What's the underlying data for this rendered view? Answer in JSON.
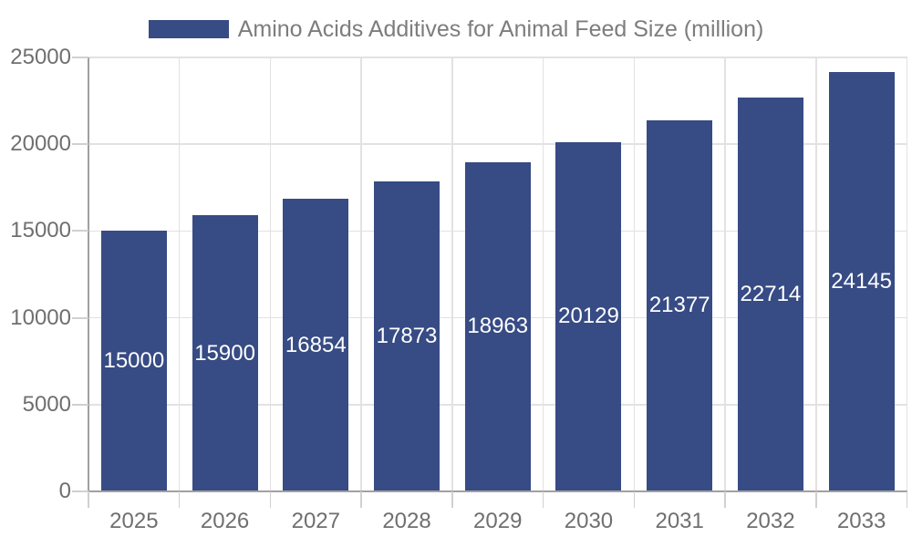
{
  "legend": {
    "label": "Amino Acids Additives for Animal Feed Size (million)"
  },
  "chart_data": {
    "type": "bar",
    "title": "Amino Acids Additives for Animal Feed Size (million)",
    "categories": [
      "2025",
      "2026",
      "2027",
      "2028",
      "2029",
      "2030",
      "2031",
      "2032",
      "2033"
    ],
    "values": [
      15000,
      15900,
      16854,
      17873,
      18963,
      20129,
      21377,
      22714,
      24145
    ],
    "xlabel": "",
    "ylabel": "",
    "ylim": [
      0,
      25000
    ],
    "yticks": [
      0,
      5000,
      10000,
      15000,
      20000,
      25000
    ],
    "grid": true,
    "legend_position": "top-center",
    "colors": {
      "bar": "#374b84",
      "value_label": "#ffffff",
      "axis_text": "#6f6f6f",
      "title_text": "#7d7d7d",
      "grid_line": "#e2e2e2",
      "tick_mark": "#d0d0d0",
      "axis_line": "#a0a0a0",
      "background": "#ffffff"
    }
  }
}
